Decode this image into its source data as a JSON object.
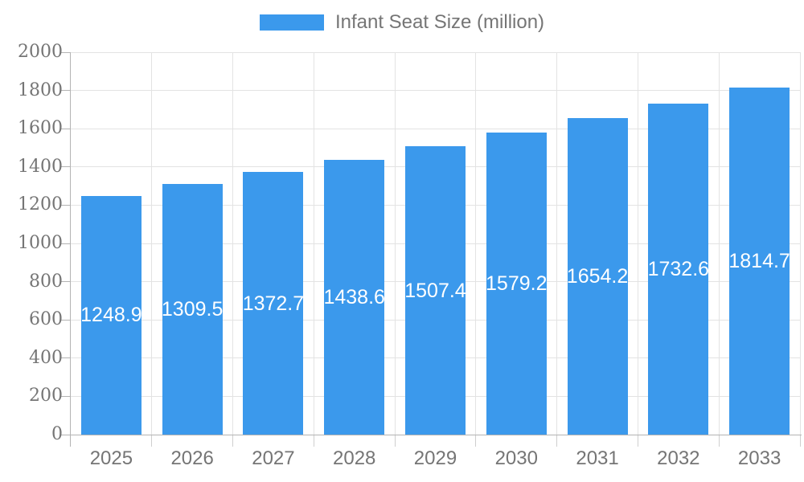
{
  "legend": {
    "label": "Infant Seat Size (million)"
  },
  "colors": {
    "bar": "#3B99EC",
    "grid": "#E3E3E3",
    "axis": "#B3B3B3",
    "x_tick": "#CFCFCF",
    "tick_label": "#757575",
    "bar_label": "#FFFFFF",
    "background": "#FFFFFF"
  },
  "chart_data": {
    "type": "bar",
    "title": "Infant Seat Size (million)",
    "categories": [
      "2025",
      "2026",
      "2027",
      "2028",
      "2029",
      "2030",
      "2031",
      "2032",
      "2033"
    ],
    "series": [
      {
        "name": "Infant Seat Size (million)",
        "values": [
          1248.9,
          1309.5,
          1372.7,
          1438.6,
          1507.4,
          1579.2,
          1654.2,
          1732.6,
          1814.7
        ]
      }
    ],
    "value_labels": [
      "1248.9",
      "1309.5",
      "1372.7",
      "1438.6",
      "1507.4",
      "1579.2",
      "1654.2",
      "1732.6",
      "1814.7"
    ],
    "xlabel": "",
    "ylabel": "",
    "ylim": [
      0,
      2000
    ],
    "ytick_step": 200,
    "ytick_labels": [
      "0",
      "200",
      "400",
      "600",
      "800",
      "1000",
      "1200",
      "1400",
      "1600",
      "1800",
      "2000"
    ],
    "grid": true,
    "legend_position": "top-center",
    "value_label_position": "inside-center"
  }
}
